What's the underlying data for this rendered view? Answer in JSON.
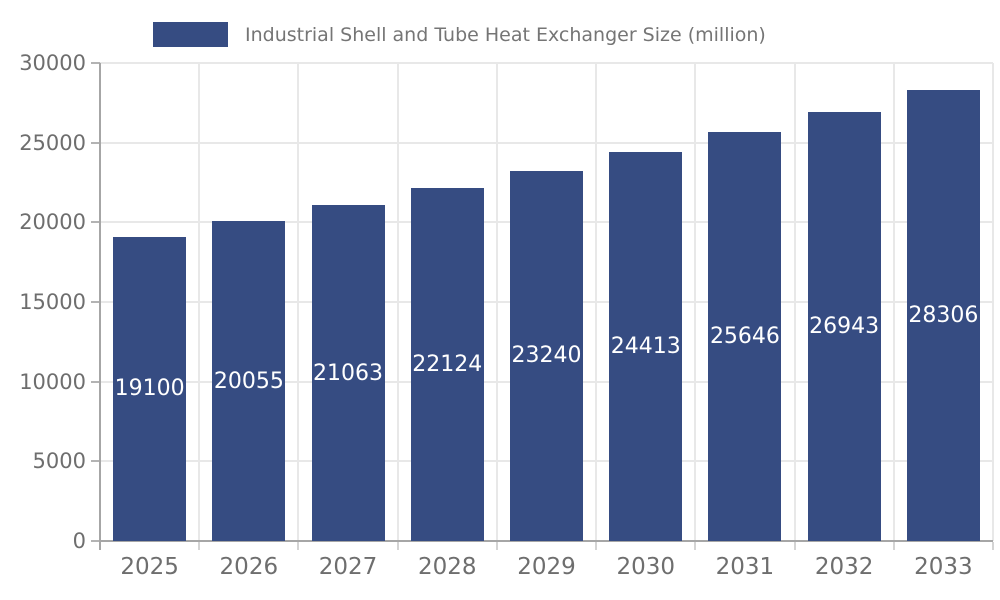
{
  "chart_data": {
    "type": "bar",
    "title": "Industrial Shell and Tube Heat Exchanger Size (million)",
    "categories": [
      "2025",
      "2026",
      "2027",
      "2028",
      "2029",
      "2030",
      "2031",
      "2032",
      "2033"
    ],
    "values": [
      19100,
      20055,
      21063,
      22124,
      23240,
      24413,
      25646,
      26943,
      28306
    ],
    "xlabel": "",
    "ylabel": "",
    "ylim": [
      0,
      30000
    ],
    "yticks": [
      0,
      5000,
      10000,
      15000,
      20000,
      25000,
      30000
    ],
    "grid": "on",
    "legend_position": "top",
    "value_labels": "inside-center",
    "colors": {
      "bar": "#364C82",
      "value_label": "#FFFFFF",
      "axis_line": "#A6A6A6",
      "grid_line": "#E8E8E8",
      "tick_label": "#6E6E6E",
      "title_text": "#757575"
    }
  }
}
